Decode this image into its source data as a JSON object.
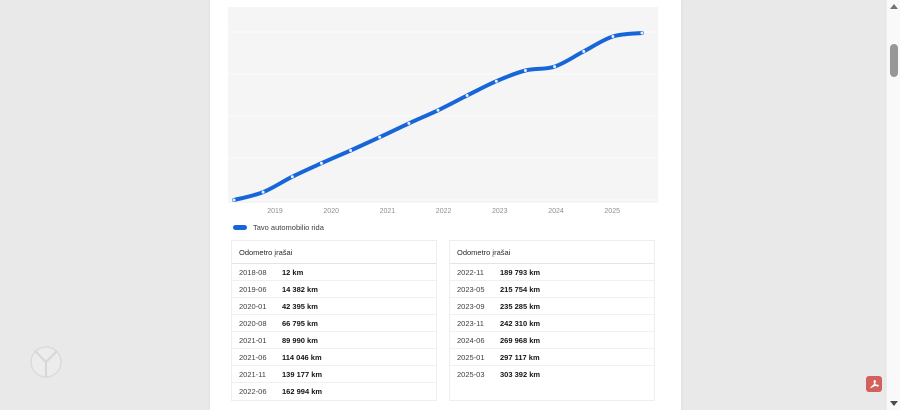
{
  "colors": {
    "page_bg": "#e9e9ea",
    "card_bg": "#ffffff",
    "line_blue": "#1766d9",
    "plot_bg": "#f5f5f6",
    "pdf_red": "#d2605c"
  },
  "legend": {
    "label": "Tavo automobilio rida"
  },
  "chart_data": {
    "type": "line",
    "title": "",
    "xlabel": "",
    "ylabel": "",
    "series": [
      {
        "name": "Tavo automobilio rida",
        "x": [
          "2018-08",
          "2019-06",
          "2020-01",
          "2020-08",
          "2021-01",
          "2021-06",
          "2021-11",
          "2022-06",
          "2022-11",
          "2023-05",
          "2023-09",
          "2023-11",
          "2024-06",
          "2025-01",
          "2025-03"
        ],
        "values": [
          12,
          14382,
          42395,
          66795,
          89990,
          114046,
          139177,
          162994,
          189793,
          215754,
          235285,
          242310,
          269968,
          297117,
          303392
        ]
      }
    ],
    "x_ticks": [
      "2019",
      "2020",
      "2021",
      "2022",
      "2023",
      "2024",
      "2025"
    ],
    "ylim": [
      0,
      320000
    ],
    "grid": true,
    "legend_position": "bottom-left",
    "line_color": "#1766d9",
    "marker_color": "#ffffff",
    "plot_bg": "#f5f5f6",
    "tick_color": "#8b9095"
  },
  "tables": [
    {
      "header": "Odometro įrašai",
      "rows": [
        {
          "date": "2018-08",
          "value": "12 km"
        },
        {
          "date": "2019-06",
          "value": "14 382 km"
        },
        {
          "date": "2020-01",
          "value": "42 395 km"
        },
        {
          "date": "2020-08",
          "value": "66 795 km"
        },
        {
          "date": "2021-01",
          "value": "89 990 km"
        },
        {
          "date": "2021-06",
          "value": "114 046 km"
        },
        {
          "date": "2021-11",
          "value": "139 177 km"
        },
        {
          "date": "2022-06",
          "value": "162 994 km"
        }
      ]
    },
    {
      "header": "Odometro įrašai",
      "rows": [
        {
          "date": "2022-11",
          "value": "189 793 km"
        },
        {
          "date": "2023-05",
          "value": "215 754 km"
        },
        {
          "date": "2023-09",
          "value": "235 285 km"
        },
        {
          "date": "2023-11",
          "value": "242 310 km"
        },
        {
          "date": "2024-06",
          "value": "269 968 km"
        },
        {
          "date": "2025-01",
          "value": "297 117 km"
        },
        {
          "date": "2025-03",
          "value": "303 392 km"
        }
      ]
    }
  ],
  "icons": {
    "scroll_up": "triangle-up",
    "scroll_down": "triangle-down",
    "pdf_badge": "adobe-pdf-swirl",
    "watermark": "three-pointed-star-in-circle"
  }
}
